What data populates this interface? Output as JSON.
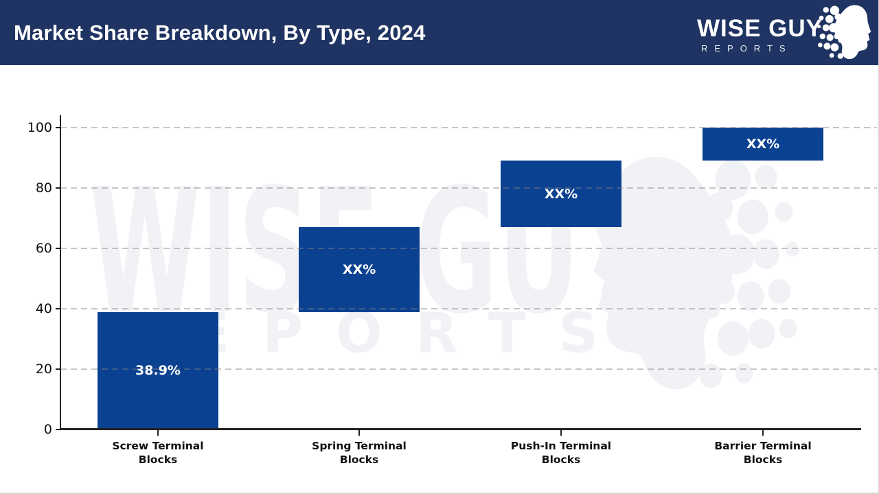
{
  "header": {
    "title": "Market Share Breakdown, By Type, 2024",
    "logo": {
      "wordmark": "WISE GUY",
      "subtext": "REPORTS"
    }
  },
  "watermark": {
    "wordmark": "WISE GUY",
    "subtext": "REPORTS"
  },
  "chart_data": {
    "type": "bar",
    "subtype": "waterfall",
    "title": "Market Share Breakdown, By Type, 2024",
    "categories": [
      "Screw Terminal Blocks",
      "Spring Terminal Blocks",
      "Push-In Terminal Blocks",
      "Barrier Terminal Blocks"
    ],
    "segments": [
      {
        "category": "Screw Terminal Blocks",
        "start": 0,
        "end": 38.9,
        "label": "38.9%"
      },
      {
        "category": "Spring Terminal Blocks",
        "start": 38.9,
        "end": 67,
        "label": "XX%"
      },
      {
        "category": "Push-In Terminal Blocks",
        "start": 67,
        "end": 89,
        "label": "XX%"
      },
      {
        "category": "Barrier Terminal Blocks",
        "start": 89,
        "end": 100,
        "label": "XX%"
      }
    ],
    "ylim": [
      0,
      100
    ],
    "yticks": [
      0,
      20,
      40,
      60,
      80,
      100
    ],
    "xlabel": "",
    "ylabel": "",
    "grid": "horizontal-dashed",
    "legend": "none",
    "bar_color": "#0b4191",
    "bar_label_color": "#ffffff"
  },
  "colors": {
    "header_bg": "#1f3462",
    "header_text": "#ffffff",
    "bar": "#0b4191",
    "axis": "#222222",
    "watermark": "#f1f2f5"
  }
}
